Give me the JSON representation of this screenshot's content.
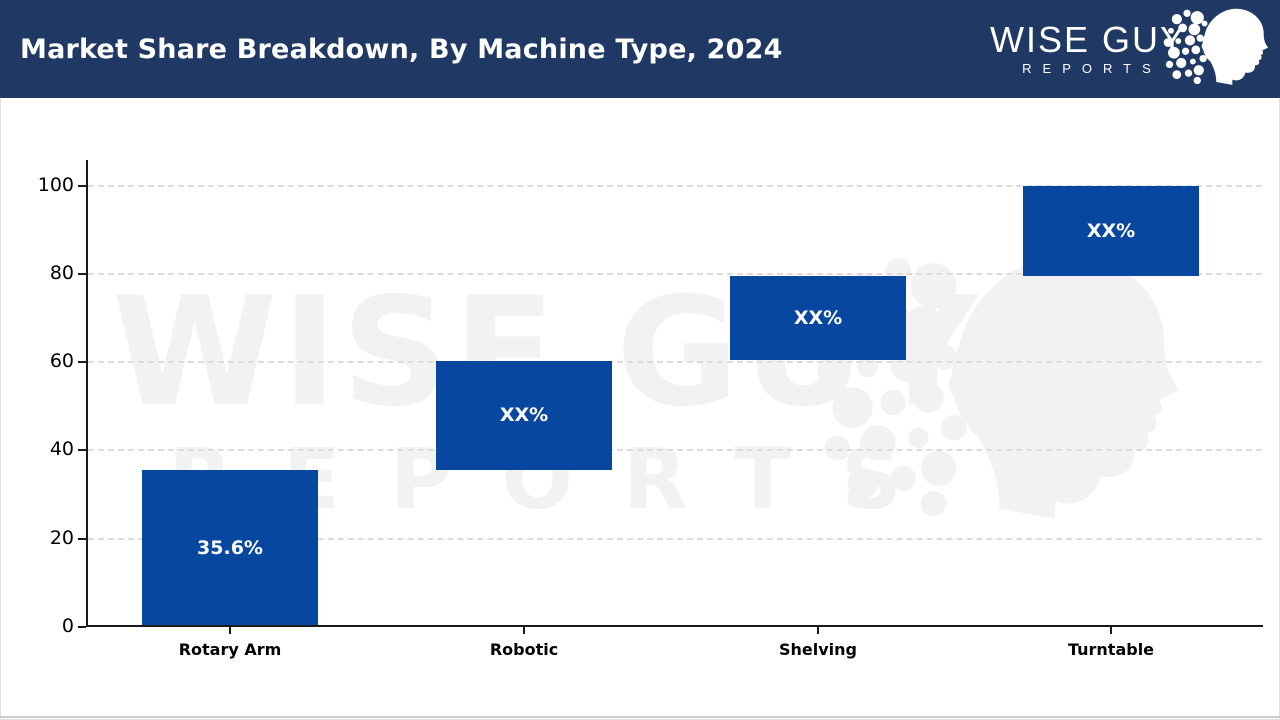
{
  "header": {
    "title": "Market Share Breakdown, By Machine Type, 2024",
    "background": "#1f3864",
    "logo": {
      "line1": "WISE GUY",
      "line2": "REPORTS"
    }
  },
  "watermark": {
    "line1": "WISE GUY",
    "line2": "REPORTS"
  },
  "chart_data": {
    "type": "bar",
    "subtype": "floating-waterfall-segments",
    "title": "Market Share Breakdown, By Machine Type, 2024",
    "categories": [
      "Rotary Arm",
      "Robotic",
      "Shelving",
      "Turntable"
    ],
    "segments": [
      {
        "category": "Rotary Arm",
        "start": 0,
        "end": 35.6,
        "label": "35.6%"
      },
      {
        "category": "Robotic",
        "start": 35.6,
        "end": 60.3,
        "label": "XX%"
      },
      {
        "category": "Shelving",
        "start": 60.5,
        "end": 79.4,
        "label": "XX%"
      },
      {
        "category": "Turntable",
        "start": 79.6,
        "end": 100,
        "label": "XX%"
      }
    ],
    "yticks": [
      0,
      20,
      40,
      60,
      80,
      100
    ],
    "ylim": [
      0,
      105
    ],
    "xlabel": "",
    "ylabel": "",
    "grid": "horizontal-dashed",
    "legend": "none",
    "bar_color": "#0847a0",
    "bar_label_color": "#ffffff",
    "axis_color": "#1a1a1a"
  }
}
